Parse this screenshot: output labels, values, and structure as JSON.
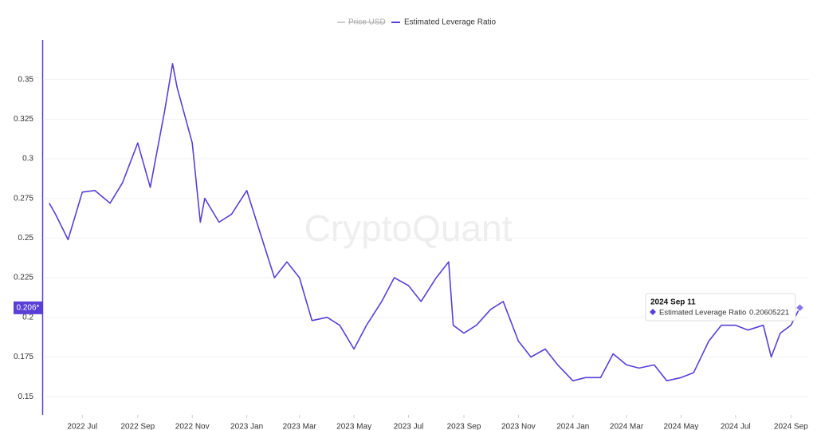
{
  "chart_data": {
    "type": "line",
    "watermark": "CryptoQuant",
    "series": [
      {
        "name": "Price USD",
        "color": "#cccccc",
        "hidden": true
      },
      {
        "name": "Estimated Leverage Ratio",
        "color": "#5a3fd6",
        "x": [
          "2022-05-25",
          "2022-06-01",
          "2022-06-15",
          "2022-07-01",
          "2022-07-15",
          "2022-08-01",
          "2022-08-15",
          "2022-09-01",
          "2022-09-15",
          "2022-10-01",
          "2022-10-10",
          "2022-10-15",
          "2022-11-01",
          "2022-11-10",
          "2022-11-15",
          "2022-12-01",
          "2022-12-15",
          "2023-01-01",
          "2023-01-15",
          "2023-02-01",
          "2023-02-15",
          "2023-03-01",
          "2023-03-15",
          "2023-04-01",
          "2023-04-15",
          "2023-05-01",
          "2023-05-15",
          "2023-06-01",
          "2023-06-15",
          "2023-07-01",
          "2023-07-15",
          "2023-08-01",
          "2023-08-15",
          "2023-08-20",
          "2023-09-01",
          "2023-09-15",
          "2023-10-01",
          "2023-10-15",
          "2023-11-01",
          "2023-11-15",
          "2023-12-01",
          "2023-12-15",
          "2024-01-01",
          "2024-01-15",
          "2024-02-01",
          "2024-02-15",
          "2024-03-01",
          "2024-03-15",
          "2024-04-01",
          "2024-04-15",
          "2024-05-01",
          "2024-05-15",
          "2024-06-01",
          "2024-06-15",
          "2024-07-01",
          "2024-07-15",
          "2024-08-01",
          "2024-08-10",
          "2024-08-20",
          "2024-09-01",
          "2024-09-11"
        ],
        "values": [
          0.272,
          0.265,
          0.249,
          0.279,
          0.28,
          0.272,
          0.285,
          0.31,
          0.282,
          0.33,
          0.36,
          0.345,
          0.31,
          0.26,
          0.275,
          0.26,
          0.265,
          0.28,
          0.255,
          0.225,
          0.235,
          0.225,
          0.198,
          0.2,
          0.195,
          0.18,
          0.195,
          0.21,
          0.225,
          0.22,
          0.21,
          0.225,
          0.235,
          0.195,
          0.19,
          0.195,
          0.205,
          0.21,
          0.185,
          0.175,
          0.18,
          0.17,
          0.16,
          0.162,
          0.162,
          0.177,
          0.17,
          0.168,
          0.17,
          0.16,
          0.162,
          0.165,
          0.185,
          0.195,
          0.195,
          0.192,
          0.195,
          0.175,
          0.19,
          0.195,
          0.20605221
        ]
      }
    ],
    "ylim": [
      0.139,
      0.375
    ],
    "yticks": [
      0.15,
      0.175,
      0.2,
      0.225,
      0.25,
      0.275,
      0.3,
      0.325,
      0.35
    ],
    "xlim": [
      "2022-05-18",
      "2024-09-15"
    ],
    "xticks": [
      {
        "value": "2022-07-01",
        "label": "2022 Jul"
      },
      {
        "value": "2022-09-01",
        "label": "2022 Sep"
      },
      {
        "value": "2022-11-01",
        "label": "2022 Nov"
      },
      {
        "value": "2023-01-01",
        "label": "2023 Jan"
      },
      {
        "value": "2023-03-01",
        "label": "2023 Mar"
      },
      {
        "value": "2023-05-01",
        "label": "2023 May"
      },
      {
        "value": "2023-07-01",
        "label": "2023 Jul"
      },
      {
        "value": "2023-09-01",
        "label": "2023 Sep"
      },
      {
        "value": "2023-11-01",
        "label": "2023 Nov"
      },
      {
        "value": "2024-01-01",
        "label": "2024 Jan"
      },
      {
        "value": "2024-03-01",
        "label": "2024 Mar"
      },
      {
        "value": "2024-05-01",
        "label": "2024 May"
      },
      {
        "value": "2024-07-01",
        "label": "2024 Jul"
      },
      {
        "value": "2024-09-01",
        "label": "2024 Sep"
      }
    ],
    "grid": true,
    "current_label": {
      "value": 0.206,
      "label": "0.206*"
    },
    "tooltip": {
      "date": "2024 Sep 11"
    }
  }
}
